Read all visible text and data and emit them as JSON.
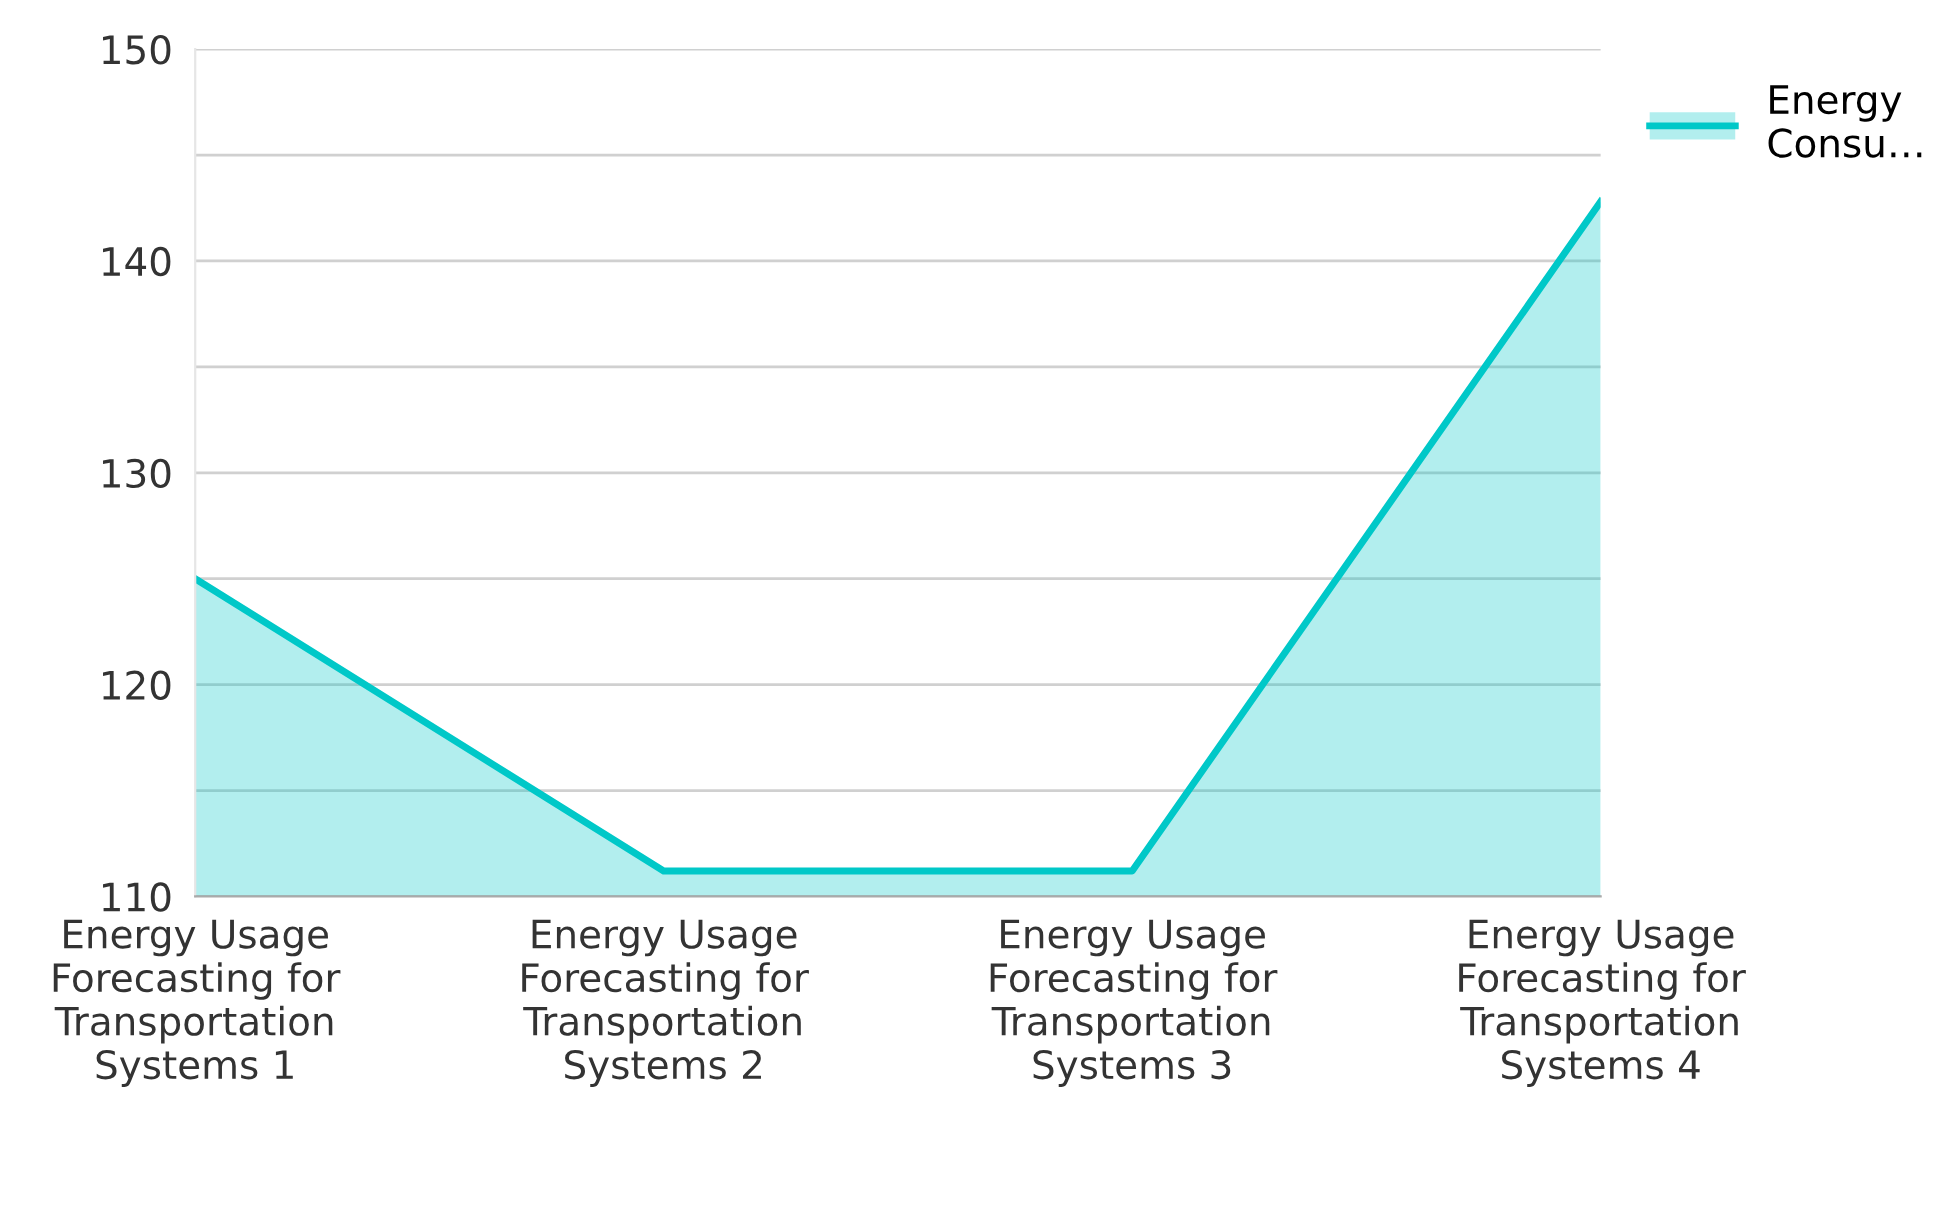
{
  "chart_data": {
    "type": "area",
    "categories": [
      "Energy Usage Forecasting for Transportation Systems 1",
      "Energy Usage Forecasting for Transportation Systems 2",
      "Energy Usage Forecasting for Transportation Systems 3",
      "Energy Usage Forecasting for Transportation Systems 4"
    ],
    "series": [
      {
        "name": "Energy Consu…",
        "color": "#00c8c8",
        "values": [
          125,
          111.2,
          111.2,
          142.8
        ]
      }
    ],
    "ylim": [
      110,
      150
    ],
    "yticks": [
      110,
      {
        "value": 115,
        "label": null
      },
      120,
      {
        "value": 125,
        "label": null
      },
      130,
      {
        "value": 135,
        "label": null
      },
      140,
      {
        "value": 145,
        "label": null
      },
      150
    ],
    "grid": "y",
    "legend": "top right",
    "marker": "none",
    "line_style": "solid"
  }
}
